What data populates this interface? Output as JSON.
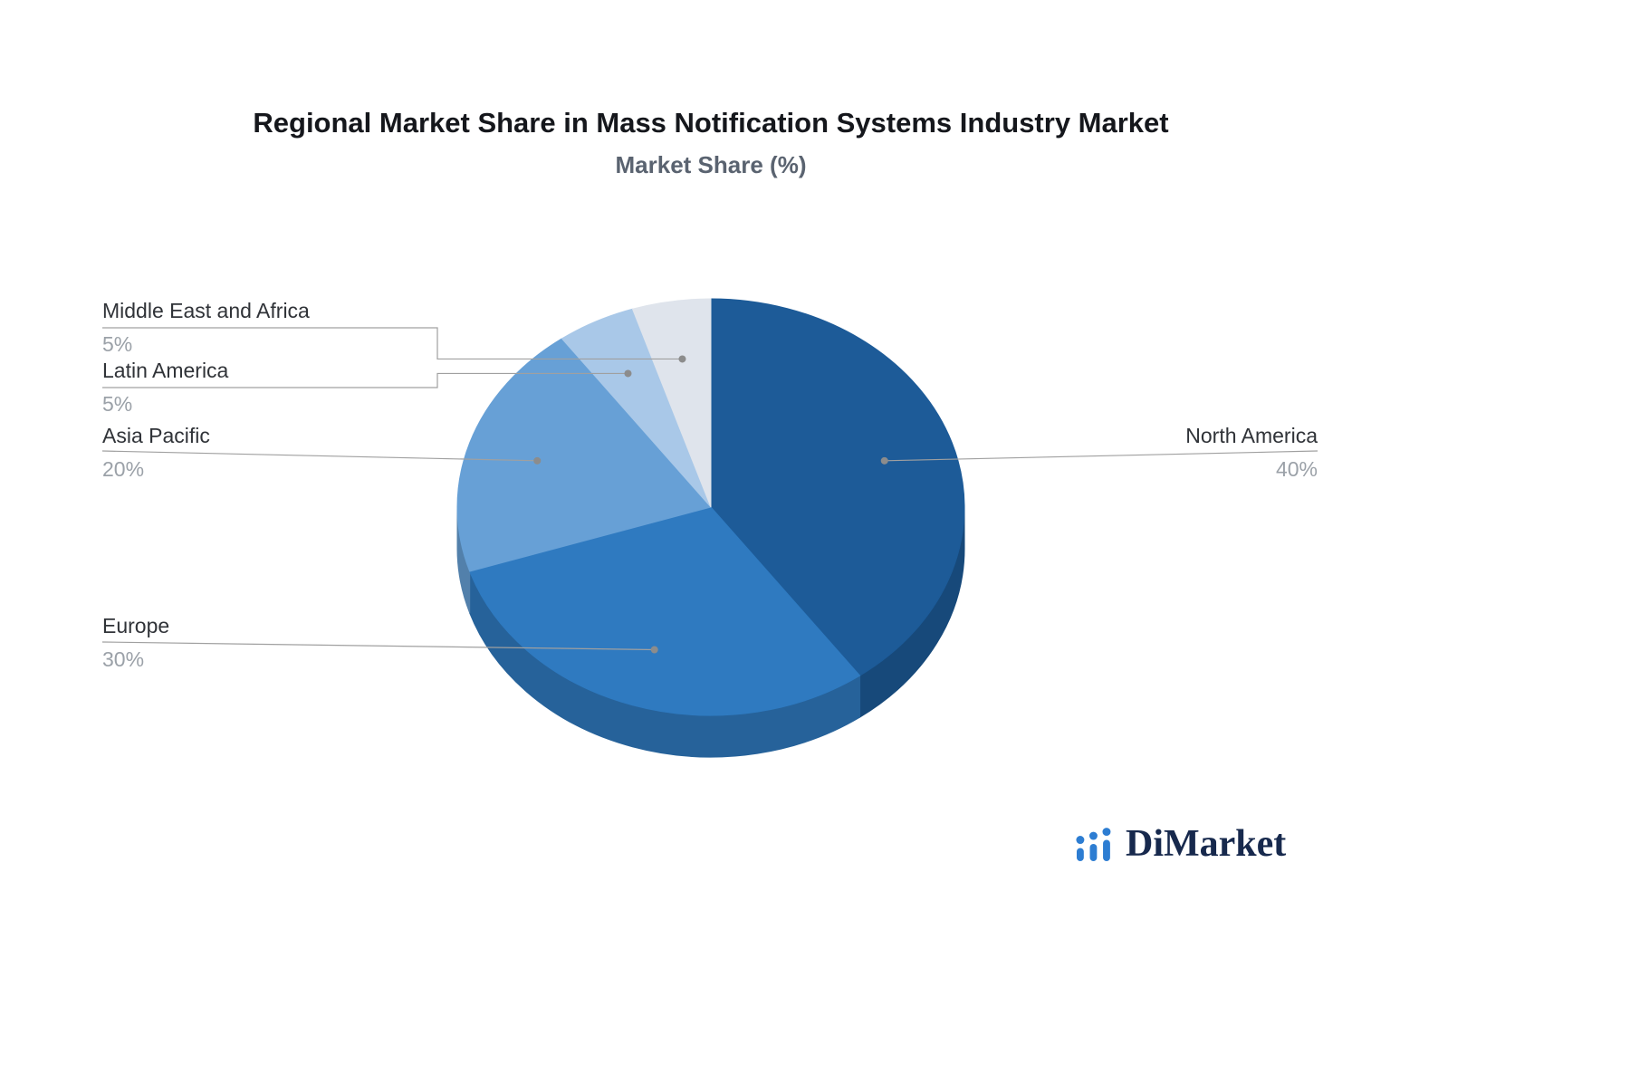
{
  "chart_data": {
    "type": "pie",
    "title": "Regional Market Share in Mass Notification Systems Industry Market",
    "subtitle": "Market Share (%)",
    "unit": "%",
    "style": "3d",
    "direction": "clockwise",
    "start_angle_deg": 0,
    "legend_position": "none",
    "labels": "outside-with-leader-lines",
    "slices": [
      {
        "label": "North America",
        "value": 40,
        "display": "40%",
        "color": "#1d5b98"
      },
      {
        "label": "Europe",
        "value": 30,
        "display": "30%",
        "color": "#2f7ac0"
      },
      {
        "label": "Asia Pacific",
        "value": 20,
        "display": "20%",
        "color": "#67a0d6"
      },
      {
        "label": "Latin America",
        "value": 5,
        "display": "5%",
        "color": "#a9c8e8"
      },
      {
        "label": "Middle East and Africa",
        "value": 5,
        "display": "5%",
        "color": "#dfe4ec"
      }
    ],
    "leader_line_color": "#a0a0a0",
    "leader_dot_color": "#8c8c8c"
  },
  "branding": {
    "logo_text": "DiMarket",
    "logo_color": "#17294d",
    "icon_name": "bar-chart-icon",
    "icon_color": "#2d7dd2"
  }
}
